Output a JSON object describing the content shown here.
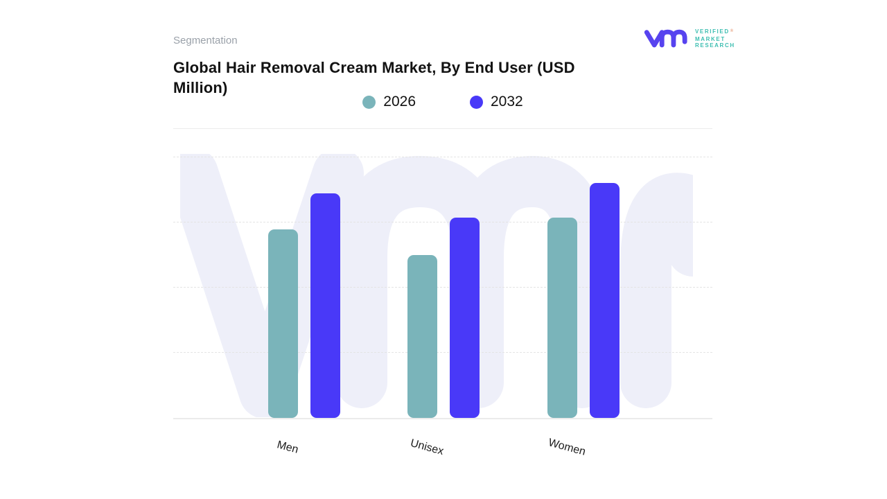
{
  "header": {
    "eyebrow": "Segmentation",
    "title": "Global Hair Removal Cream Market, By End User (USD Million)"
  },
  "logo": {
    "brand_lines": [
      "VERIFIED",
      "MARKET",
      "RESEARCH"
    ],
    "registered_mark": "®",
    "mark_color": "#5743ef",
    "text_color": "#3dbeb1",
    "registered_mark_color": "#e9a687"
  },
  "legend": {
    "items": [
      {
        "label": "2026",
        "color": "#7ab4ba"
      },
      {
        "label": "2032",
        "color": "#4939f8"
      }
    ]
  },
  "watermark_color": "#eeeff9",
  "chart_data": {
    "type": "bar",
    "title": "Global Hair Removal Cream Market, By End User (USD Million)",
    "categories": [
      "Men",
      "Unisex",
      "Women"
    ],
    "series": [
      {
        "name": "2026",
        "color": "#7ab4ba",
        "values": [
          289,
          250,
          308
        ]
      },
      {
        "name": "2032",
        "color": "#4939f8",
        "values": [
          345,
          307,
          361
        ]
      }
    ],
    "ylim": [
      0,
      400
    ],
    "gridline_step": 100,
    "grid": "dashed-horizontal",
    "legend_position": "top-center",
    "y_axis_labels_visible": false,
    "x_label_rotation_deg": 15,
    "value_note": "values estimated from unlabeled gridlines"
  }
}
